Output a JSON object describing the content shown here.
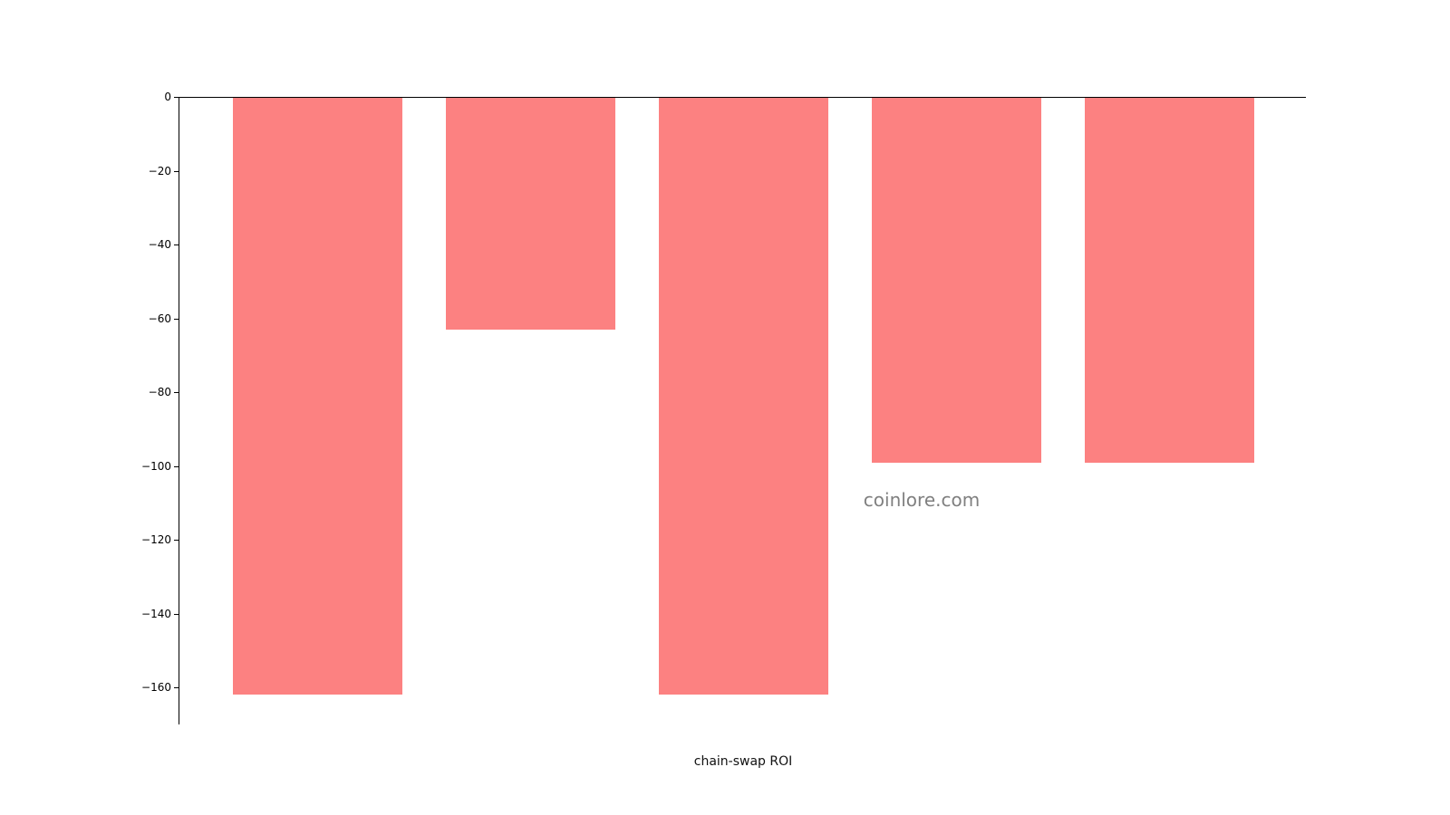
{
  "chart_data": {
    "type": "bar",
    "title": "",
    "xlabel": "chain-swap ROI",
    "ylabel": "",
    "values": [
      -162,
      -63,
      -162,
      -99,
      -99
    ],
    "ylim": [
      -170,
      0
    ],
    "yticks": [
      0,
      -20,
      -40,
      -60,
      -80,
      -100,
      -120,
      -140,
      -160
    ],
    "ytick_labels": [
      "0",
      "−20",
      "−40",
      "−60",
      "−80",
      "−100",
      "−120",
      "−140",
      "−160"
    ],
    "grid": false,
    "legend": false,
    "bar_color": "#fc8181",
    "axis_color": "#000000",
    "background_color": "#ffffff",
    "watermark": "coinlore.com"
  }
}
